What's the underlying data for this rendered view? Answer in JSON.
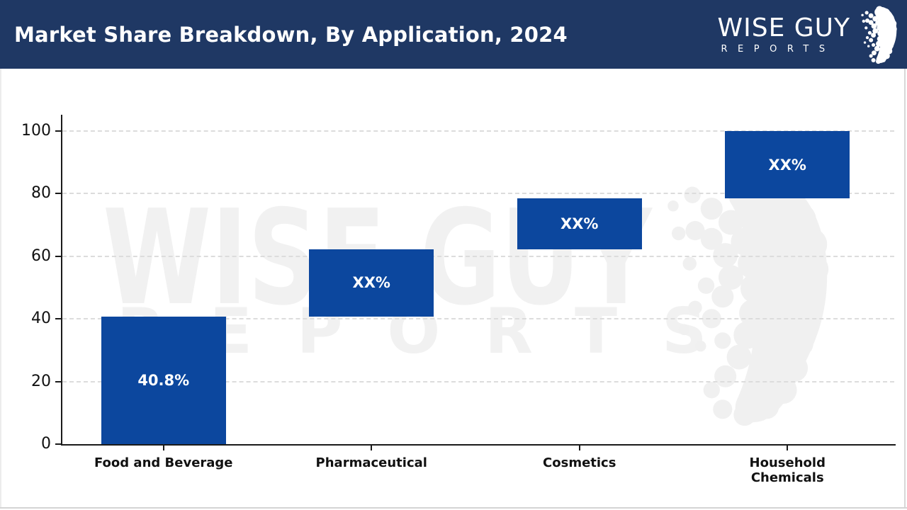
{
  "header": {
    "title": "Market Share Breakdown, By Application, 2024",
    "logo": {
      "wordmark": "WISE GUY",
      "subtext": "REPORTS",
      "icon": "wiseguy-face-icon"
    }
  },
  "watermark": {
    "line1": "WISE GUY",
    "line2": "REPORTS"
  },
  "colors": {
    "header_bg": "#1f3864",
    "header_text": "#ffffff",
    "axis": "#1a1a1a",
    "text": "#111111",
    "grid": "#dcdcdc",
    "watermark": "#f1f1f1"
  },
  "chart_data": {
    "type": "bar",
    "subtype": "waterfall",
    "title": "Market Share Breakdown, By Application, 2024",
    "categories": [
      "Food and Beverage",
      "Pharmaceutical",
      "Cosmetics",
      "Household\nChemicals"
    ],
    "segments": [
      {
        "start": 0,
        "end": 40.8,
        "label": "40.8%"
      },
      {
        "start": 40.8,
        "end": 62.2,
        "label": "XX%"
      },
      {
        "start": 62.2,
        "end": 78.4,
        "label": "XX%"
      },
      {
        "start": 78.4,
        "end": 100,
        "label": "XX%"
      }
    ],
    "xlabel": "",
    "ylabel": "",
    "ylim": [
      0,
      100
    ],
    "yticks": [
      0,
      20,
      40,
      60,
      80,
      100
    ],
    "grid": true,
    "legend": false,
    "bar_color": "#0c479e",
    "bar_label_color": "#ffffff"
  }
}
